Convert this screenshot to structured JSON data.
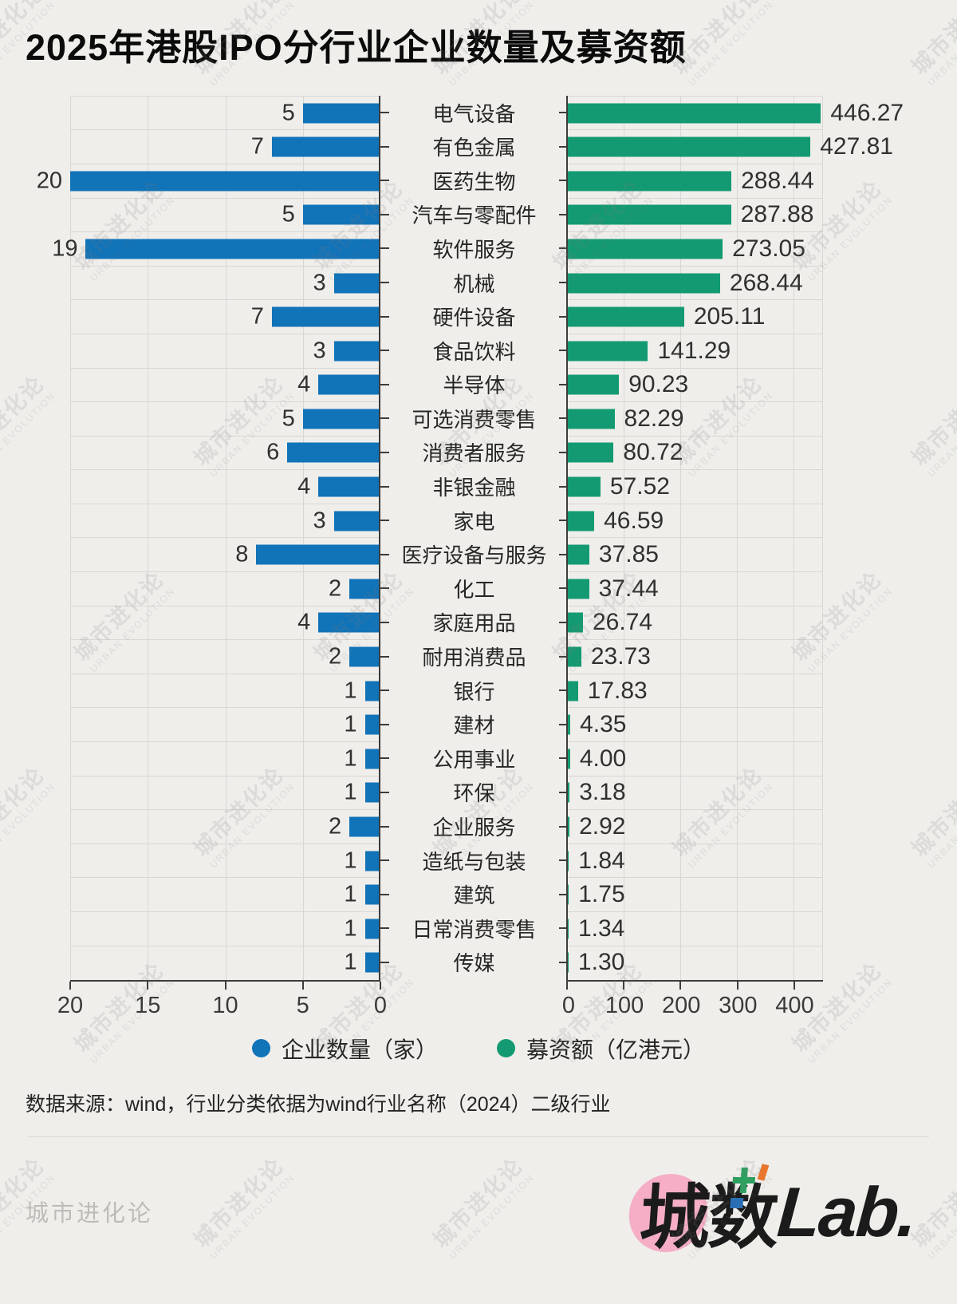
{
  "title": "2025年港股IPO分行业企业数量及募资额",
  "watermark": {
    "line1": "城市进化论",
    "line2": "URBAN EVOLUTION"
  },
  "colors": {
    "background": "#efeeeb",
    "company_count_blue": "#1173b8",
    "fundraise_green": "#149a72",
    "logo_pink": "#f5aec6"
  },
  "chart_data": {
    "type": "bar",
    "orientation": "horizontal-diverging",
    "categories": [
      "电气设备",
      "有色金属",
      "医药生物",
      "汽车与零配件",
      "软件服务",
      "机械",
      "硬件设备",
      "食品饮料",
      "半导体",
      "可选消费零售",
      "消费者服务",
      "非银金融",
      "家电",
      "医疗设备与服务",
      "化工",
      "家庭用品",
      "耐用消费品",
      "银行",
      "建材",
      "公用事业",
      "环保",
      "企业服务",
      "造纸与包装",
      "建筑",
      "日常消费零售",
      "传媒"
    ],
    "series": [
      {
        "name": "企业数量（家）",
        "color": "#1173b8",
        "axis_max": 20,
        "values": [
          5,
          7,
          20,
          5,
          19,
          3,
          7,
          3,
          4,
          5,
          6,
          4,
          3,
          8,
          2,
          4,
          2,
          1,
          1,
          1,
          1,
          2,
          1,
          1,
          1,
          1
        ]
      },
      {
        "name": "募资额（亿港元）",
        "color": "#149a72",
        "axis_max": 450,
        "values": [
          446.27,
          427.81,
          288.44,
          287.88,
          273.05,
          268.44,
          205.11,
          141.29,
          90.23,
          82.29,
          80.72,
          57.52,
          46.59,
          37.85,
          37.44,
          26.74,
          23.73,
          17.83,
          4.35,
          4.0,
          3.18,
          2.92,
          1.84,
          1.75,
          1.34,
          1.3
        ]
      }
    ],
    "left_axis_ticks": [
      "20",
      "15",
      "10",
      "5",
      "0"
    ],
    "right_axis_ticks": [
      "0",
      "100",
      "200",
      "300",
      "400"
    ],
    "grid": true,
    "legend_position": "bottom"
  },
  "legend": {
    "items": [
      {
        "label": "企业数量（家）",
        "color": "#1173b8"
      },
      {
        "label": "募资额（亿港元）",
        "color": "#149a72"
      }
    ]
  },
  "source_note": "数据来源：wind，行业分类依据为wind行业名称（2024）二级行业",
  "footer": {
    "brand_left": "城市进化论",
    "logo_text_cn": "城数",
    "logo_text_latin": "Lab."
  }
}
